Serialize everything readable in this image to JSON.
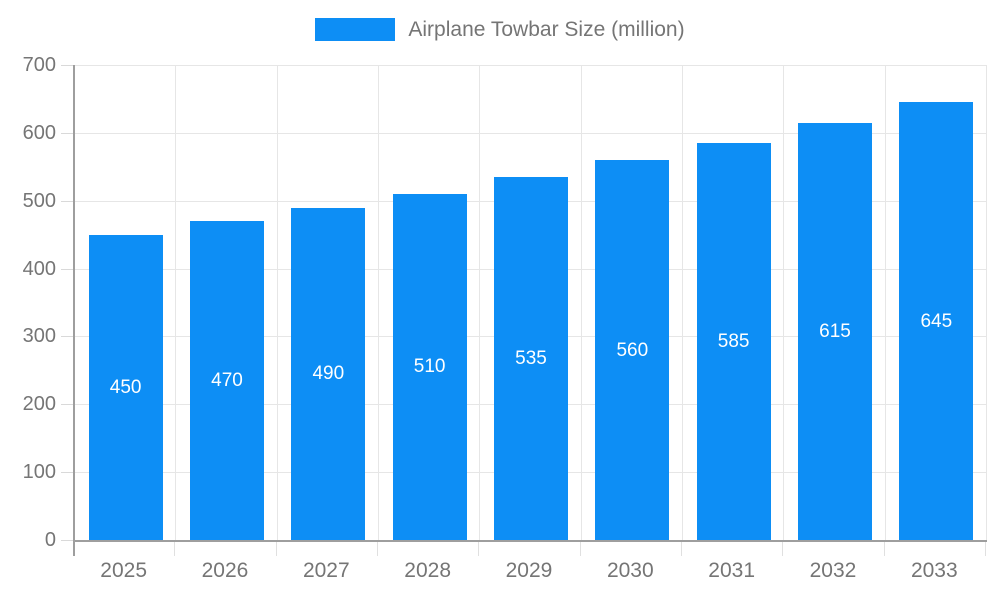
{
  "legend": {
    "label": "Airplane Towbar Size (million)",
    "swatch_color": "#0d8ef5"
  },
  "chart_data": {
    "type": "bar",
    "title": "Airplane Towbar Size (million)",
    "categories": [
      "2025",
      "2026",
      "2027",
      "2028",
      "2029",
      "2030",
      "2031",
      "2032",
      "2033"
    ],
    "values": [
      450,
      470,
      490,
      510,
      535,
      560,
      585,
      615,
      645
    ],
    "xlabel": "",
    "ylabel": "",
    "ylim": [
      0,
      700
    ],
    "yticks": [
      0,
      100,
      200,
      300,
      400,
      500,
      600,
      700
    ],
    "grid": true,
    "legend_position": "top-center",
    "bar_color": "#0d8ef5",
    "bar_label_color": "#ffffff",
    "axis_color": "#9e9e9e",
    "gridline_color": "#e6e6e6",
    "tick_label_color": "#757575"
  }
}
